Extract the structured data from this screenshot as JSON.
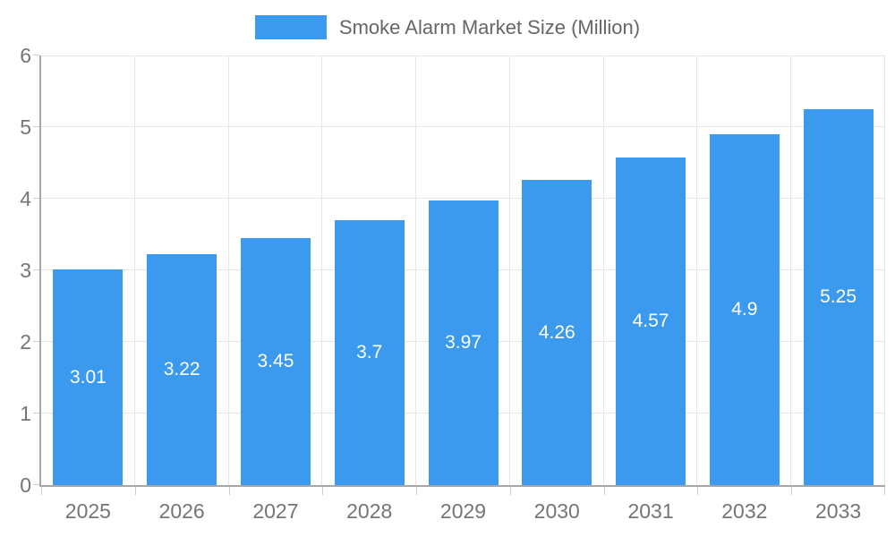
{
  "legend": {
    "label": "Smoke Alarm Market Size (Million)"
  },
  "colors": {
    "bar": "#3b99ee",
    "grid": "#e6e6e6",
    "axis": "#a6a6a6",
    "tick": "#cccccc",
    "axis_label_text": "#757575",
    "legend_text": "#666666",
    "bar_label_text": "#ffffff",
    "background": "#ffffff"
  },
  "chart_data": {
    "type": "bar",
    "title": "Smoke Alarm Market Size (Million)",
    "series_name": "Smoke Alarm Market Size (Million)",
    "categories": [
      "2025",
      "2026",
      "2027",
      "2028",
      "2029",
      "2030",
      "2031",
      "2032",
      "2033"
    ],
    "values": [
      3.01,
      3.22,
      3.45,
      3.7,
      3.97,
      4.26,
      4.57,
      4.9,
      5.25
    ],
    "value_labels": [
      "3.01",
      "3.22",
      "3.45",
      "3.7",
      "3.97",
      "4.26",
      "4.57",
      "4.9",
      "5.25"
    ],
    "xlabel": "",
    "ylabel": "",
    "ylim": [
      0,
      6
    ],
    "yticks": [
      0,
      1,
      2,
      3,
      4,
      5,
      6
    ],
    "grid": true,
    "legend_position": "top-center",
    "value_label_position": "inside-center"
  }
}
